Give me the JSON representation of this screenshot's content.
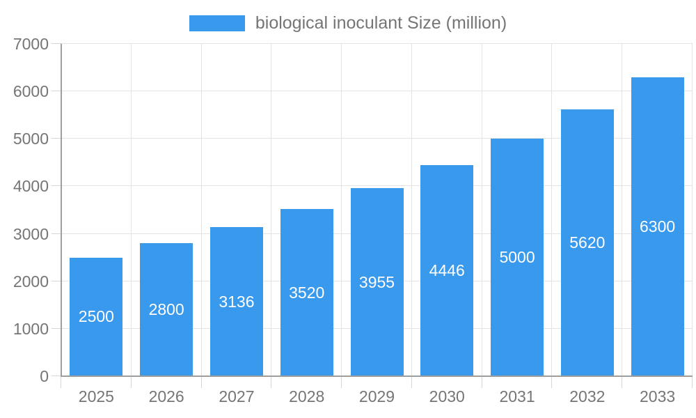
{
  "legend": {
    "label": "biological inoculant Size (million)"
  },
  "chart_data": {
    "type": "bar",
    "title": "biological inoculant Size (million)",
    "categories": [
      "2025",
      "2026",
      "2027",
      "2028",
      "2029",
      "2030",
      "2031",
      "2032",
      "2033"
    ],
    "values": [
      2500,
      2800,
      3136,
      3520,
      3955,
      4446,
      5000,
      5620,
      6300
    ],
    "series_name": "biological inoculant Size (million)",
    "xlabel": "",
    "ylabel": "",
    "ylim": [
      0,
      7000
    ],
    "yticks": [
      0,
      1000,
      2000,
      3000,
      4000,
      5000,
      6000,
      7000
    ],
    "grid": true,
    "legend_position": "top",
    "value_labels": "inside-center",
    "colors": {
      "bar": "#3999ED",
      "value_label": "#FFFFFF",
      "axis_line": "#9E9E9E",
      "grid_line": "#E3E3E3",
      "tick_line": "#D6D6D6",
      "text": "#757575",
      "background": "#FFFFFF"
    }
  }
}
